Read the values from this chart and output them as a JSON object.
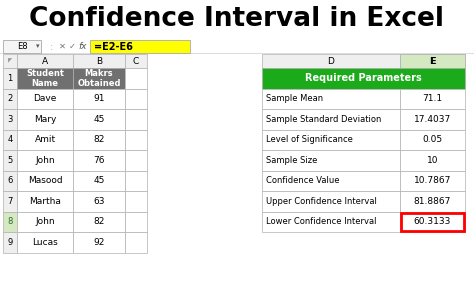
{
  "title": "Confidence Interval in Excel",
  "title_fontsize": 19,
  "title_fontweight": "bold",
  "bg_color": "#ffffff",
  "formula_bar": {
    "cell_ref": "E8",
    "formula": "=E2-E6",
    "formula_bg": "#ffff00"
  },
  "left_table": {
    "header": [
      "Student\nName",
      "Makrs\nObtained"
    ],
    "header_bg": "#707070",
    "header_fg": "#ffffff",
    "rows": [
      [
        "Dave",
        "91"
      ],
      [
        "Mary",
        "45"
      ],
      [
        "Amit",
        "82"
      ],
      [
        "John",
        "76"
      ],
      [
        "Masood",
        "45"
      ],
      [
        "Martha",
        "63"
      ],
      [
        "John",
        "82"
      ],
      [
        "Lucas",
        "92"
      ]
    ],
    "col_labels": [
      "A",
      "B",
      "C"
    ],
    "grid_color": "#c0c0c0"
  },
  "right_table": {
    "header": "Required Parameters",
    "header_bg": "#1aaa1a",
    "header_fg": "#ffffff",
    "col_labels": [
      "D",
      "E"
    ],
    "rows": [
      [
        "Sample Mean",
        "71.1"
      ],
      [
        "Sample Standard Deviation",
        "17.4037"
      ],
      [
        "Level of Significance",
        "0.05"
      ],
      [
        "Sample Size",
        "10"
      ],
      [
        "Confidence Value",
        "10.7867"
      ],
      [
        "Upper Confidence Interval",
        "81.8867"
      ],
      [
        "Lower Confidence Interval",
        "60.3133"
      ]
    ],
    "highlight_row": 6,
    "highlight_border": "#ff0000"
  }
}
